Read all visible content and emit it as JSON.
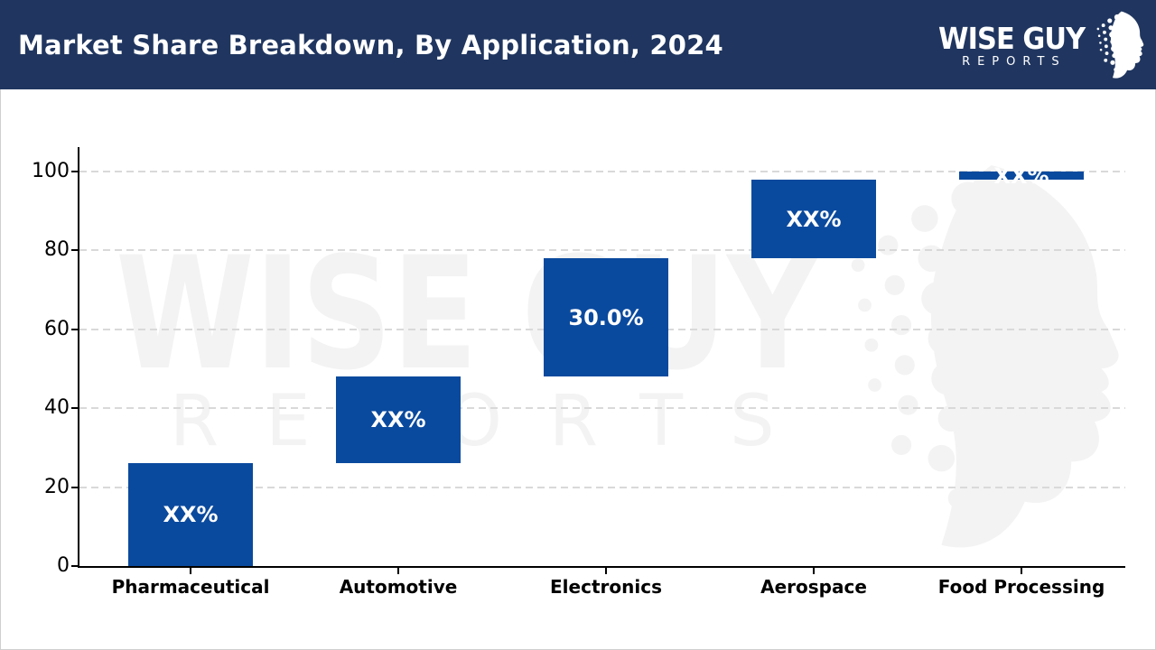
{
  "header": {
    "title": "Market Share Breakdown, By Application, 2024"
  },
  "logo": {
    "line1": "WISE GUY",
    "line2": "REPORTS"
  },
  "watermark": {
    "line1": "WISE GUY",
    "line2": "REPORTS"
  },
  "chart_data": {
    "type": "bar",
    "subtype": "waterfall",
    "title": "Market Share Breakdown, By Application, 2024",
    "categories": [
      "Pharmaceutical",
      "Automotive",
      "Electronics",
      "Aerospace",
      "Food Processing"
    ],
    "segments": [
      {
        "category": "Pharmaceutical",
        "start": 0,
        "end": 26,
        "value": 26,
        "label": "XX%"
      },
      {
        "category": "Automotive",
        "start": 26,
        "end": 48,
        "value": 22,
        "label": "XX%"
      },
      {
        "category": "Electronics",
        "start": 48,
        "end": 78,
        "value": 30,
        "label": "30.0%"
      },
      {
        "category": "Aerospace",
        "start": 78,
        "end": 98,
        "value": 20,
        "label": "XX%"
      },
      {
        "category": "Food Processing",
        "start": 98,
        "end": 100,
        "value": 2,
        "label": "XX%"
      }
    ],
    "y_ticks": [
      0,
      20,
      40,
      60,
      80,
      100
    ],
    "ylim": [
      0,
      100
    ],
    "xlabel": "",
    "ylabel": "",
    "grid": "horizontal-dashed",
    "legend": "none"
  },
  "colors": {
    "header_bg": "#203660",
    "bar": "#0a4a9e",
    "grid": "#d9d9d9",
    "axis": "#000000",
    "bar_label": "#ffffff",
    "watermark": "#f3f3f3",
    "page_border": "#cfcfcf"
  }
}
